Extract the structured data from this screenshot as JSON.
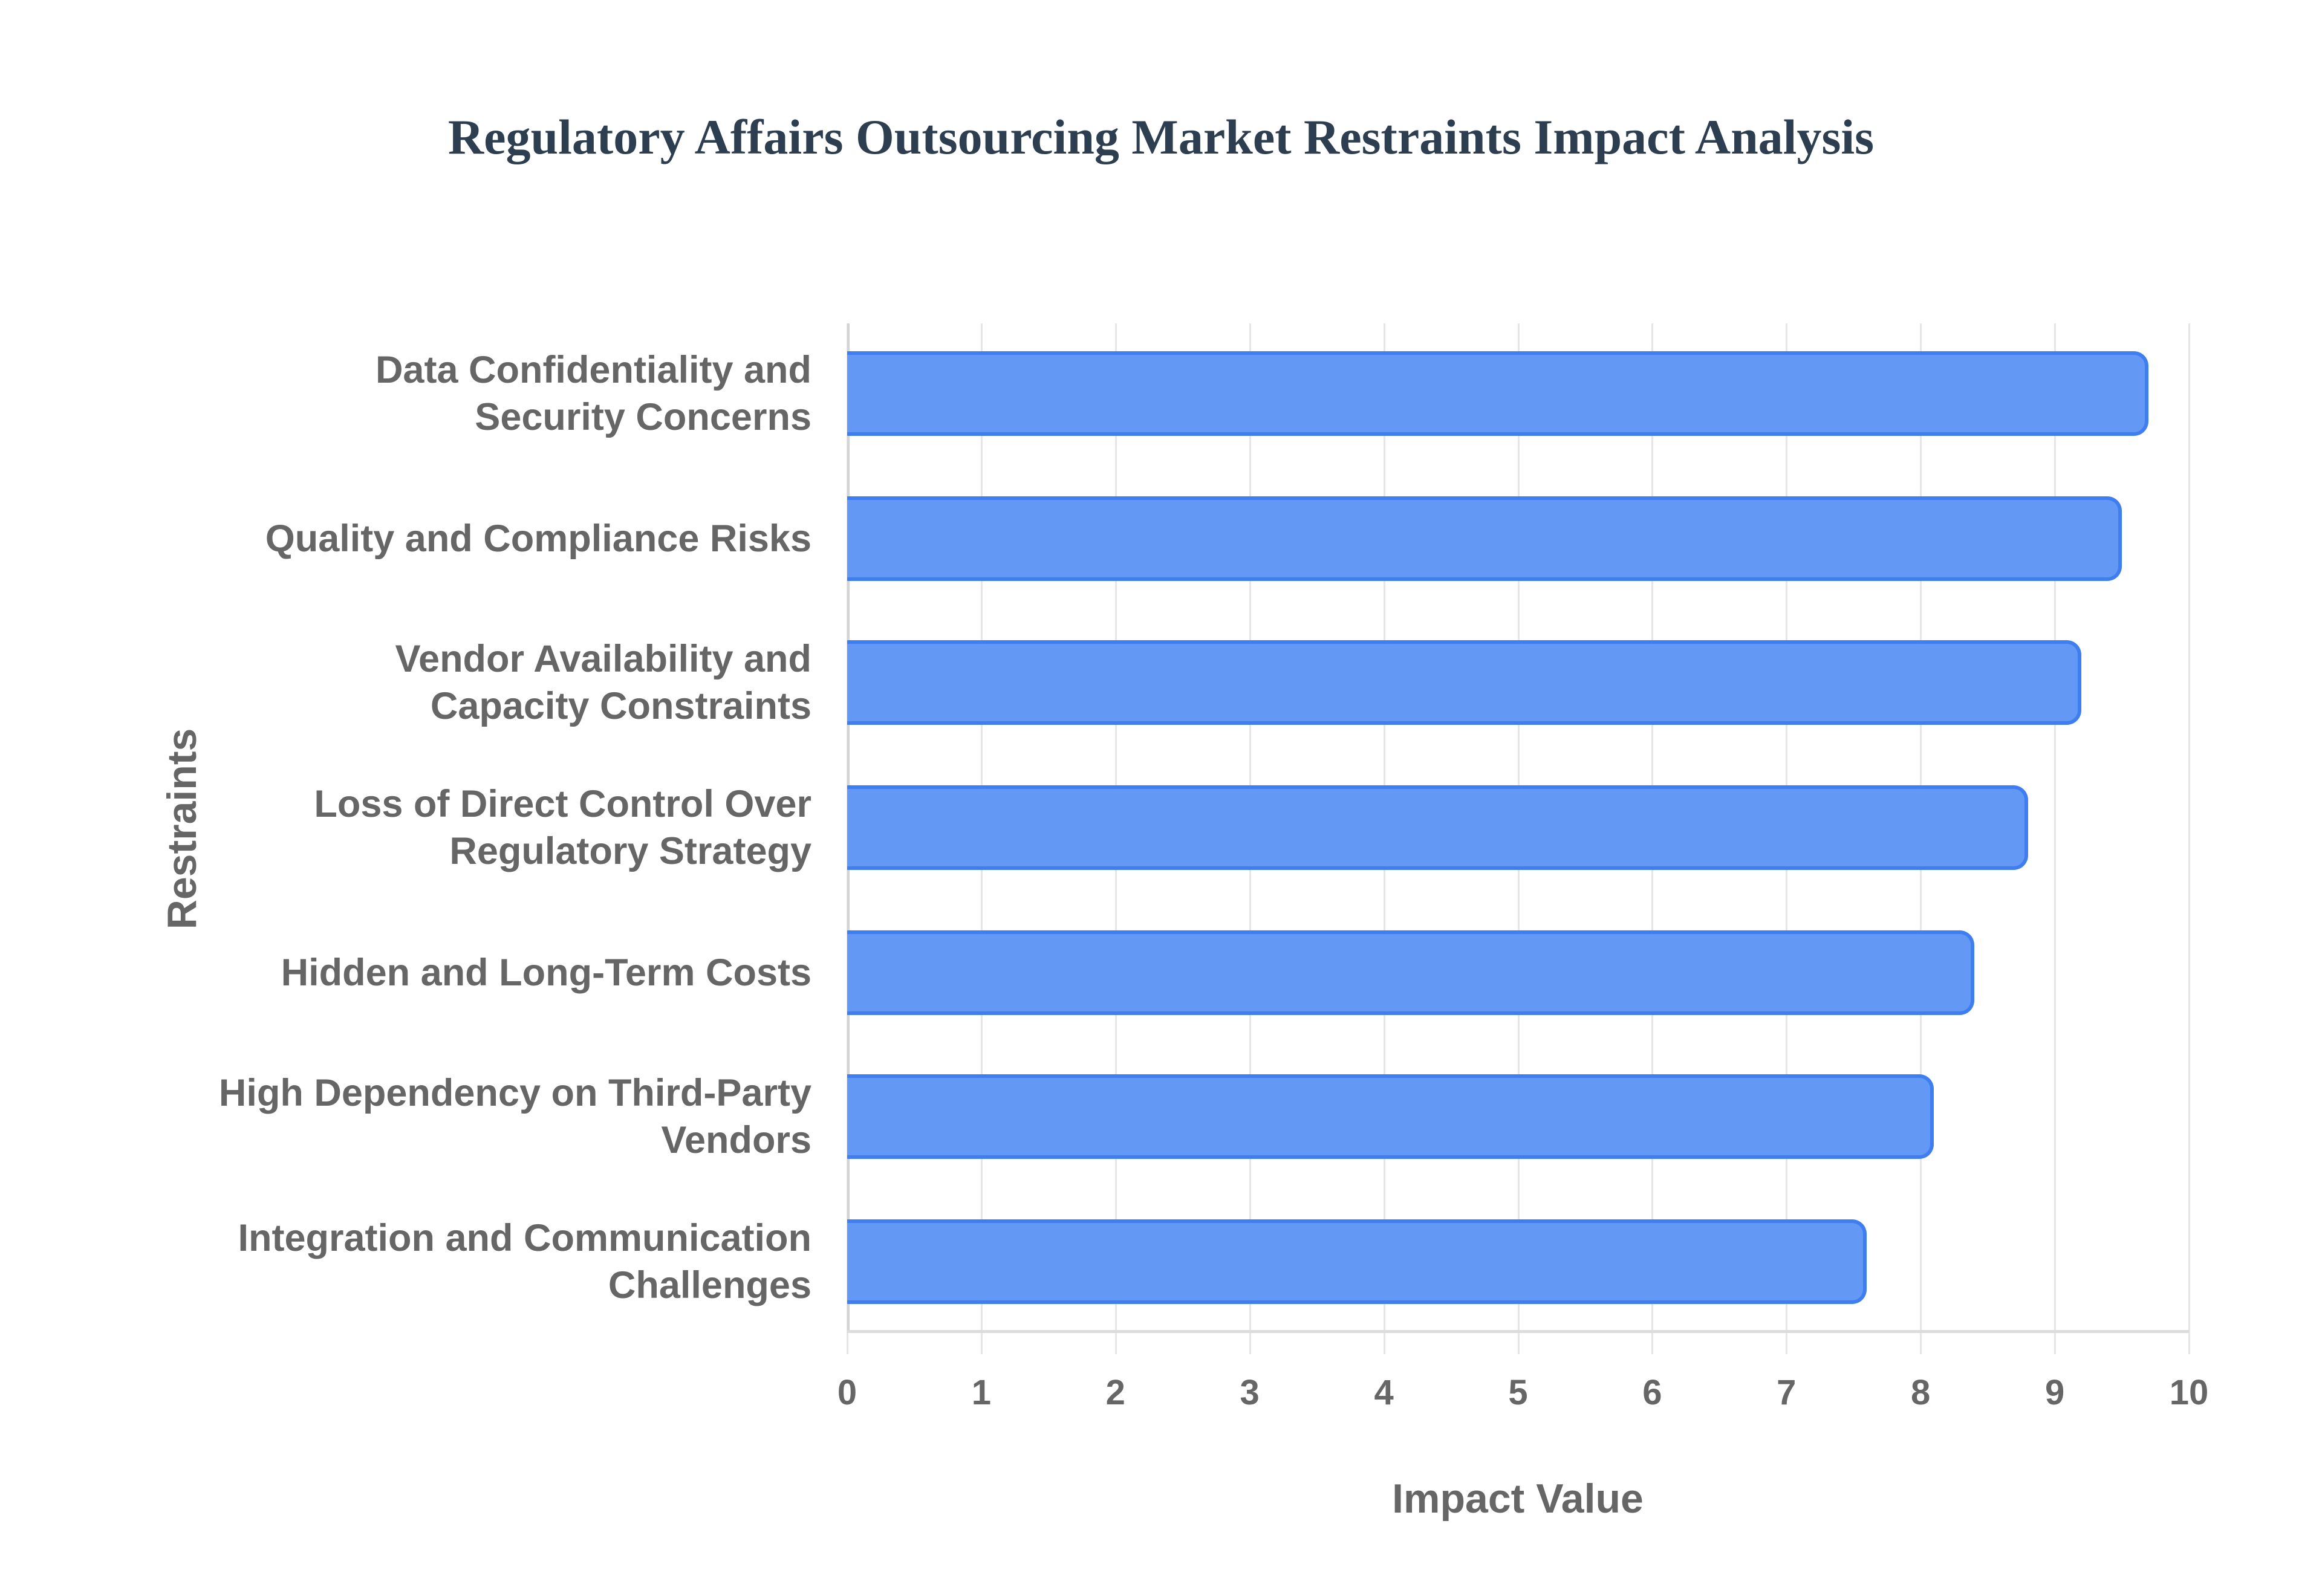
{
  "chart_data": {
    "type": "bar",
    "orientation": "horizontal",
    "title": "Regulatory Affairs Outsourcing Market Restraints Impact Analysis",
    "xlabel": "Impact Value",
    "ylabel": "Restraints",
    "xlim": [
      0,
      10
    ],
    "xticks": [
      "0",
      "1",
      "2",
      "3",
      "4",
      "5",
      "6",
      "7",
      "8",
      "9",
      "10"
    ],
    "grid": true,
    "legend": null,
    "bar_color": "#6399f5",
    "bar_border_color": "#3f7ef0",
    "categories": [
      [
        "Data Confidentiality and",
        "Security Concerns"
      ],
      [
        "Quality and Compliance Risks"
      ],
      [
        "Vendor Availability and",
        "Capacity Constraints"
      ],
      [
        "Loss of Direct Control Over",
        "Regulatory Strategy"
      ],
      [
        "Hidden and Long-Term Costs"
      ],
      [
        "High Dependency on Third-Party",
        "Vendors"
      ],
      [
        "Integration and Communication",
        "Challenges"
      ]
    ],
    "category_names": [
      "Data Confidentiality and Security Concerns",
      "Quality and Compliance Risks",
      "Vendor Availability and Capacity Constraints",
      "Loss of Direct Control Over Regulatory Strategy",
      "Hidden and Long-Term Costs",
      "High Dependency on Third-Party Vendors",
      "Integration and Communication Challenges"
    ],
    "values": [
      9.7,
      9.5,
      9.2,
      8.8,
      8.4,
      8.1,
      7.6
    ]
  }
}
